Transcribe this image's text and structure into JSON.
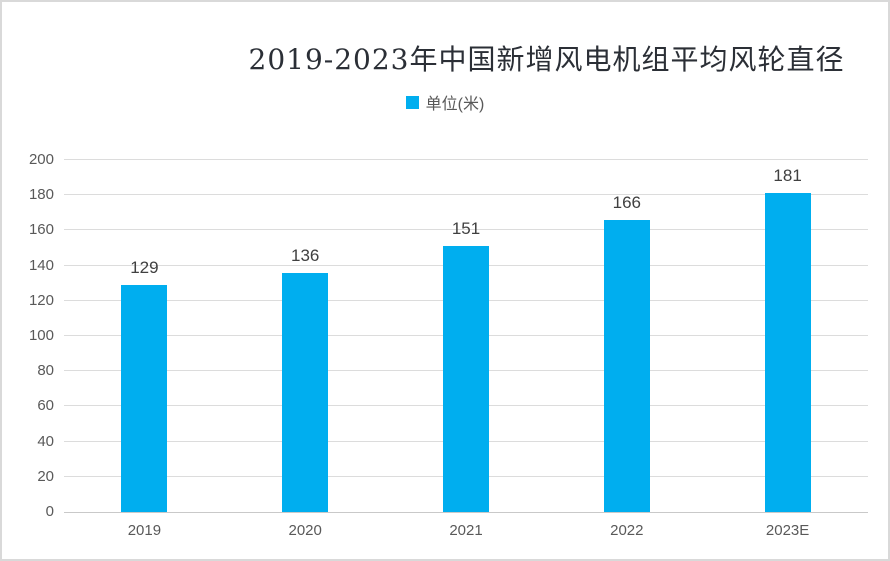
{
  "page": {
    "background": "#ffffff",
    "frame_border_color": "#d9d9d9"
  },
  "chart_data": {
    "type": "bar",
    "title": "2019-2023年中国新增风电机组平均风轮直径",
    "legend_label": "单位(米)",
    "legend_position": "top",
    "categories": [
      "2019",
      "2020",
      "2021",
      "2022",
      "2023E"
    ],
    "values": [
      129,
      136,
      151,
      166,
      181
    ],
    "value_labels_shown": true,
    "xlabel": "",
    "ylabel": "",
    "ylim": [
      0,
      200
    ],
    "ytick_step": 20,
    "grid": true,
    "bar_color": "#00AEEF",
    "gridline_color": "#dcdcdc",
    "axis_line_color": "#c9c9c9",
    "text_color_axis": "#595959",
    "text_color_values": "#404040"
  }
}
